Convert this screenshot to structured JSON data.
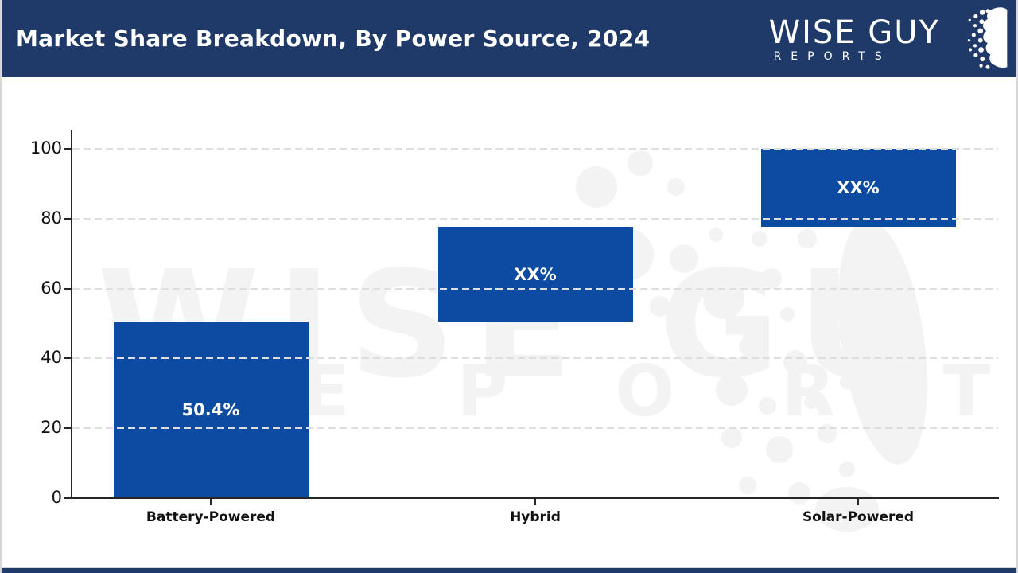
{
  "header": {
    "title": "Market Share Breakdown, By Power Source, 2024",
    "logo": {
      "line1": "WISE GUY",
      "line2": "REPORTS"
    }
  },
  "watermark": {
    "line1": "WISE GU",
    "line2": "R E P O R T S"
  },
  "chart_data": {
    "type": "bar",
    "subtype": "stacked-waterfall-range",
    "title": "Market Share Breakdown, By Power Source, 2024",
    "categories": [
      "Battery-Powered",
      "Hybrid",
      "Solar-Powered"
    ],
    "segments": [
      {
        "category": "Battery-Powered",
        "label": "50.4%",
        "start": 0,
        "end": 50.4
      },
      {
        "category": "Hybrid",
        "label": "XX%",
        "start": 50.6,
        "end": 77.6
      },
      {
        "category": "Solar-Powered",
        "label": "XX%",
        "start": 77.7,
        "end": 100.1
      }
    ],
    "ylim": [
      0,
      105
    ],
    "yticks": [
      0,
      20,
      40,
      60,
      80,
      100
    ],
    "grid": "horizontal-dashed",
    "legend": "none",
    "bar_color": "#0c4ba1"
  },
  "colors": {
    "header_bg": "#1f3a68",
    "footer_bg": "#1f3a68",
    "bar": "#0c4ba1",
    "axis": "#262626",
    "grid": "#dedede",
    "watermark": "#f3f3f3",
    "border": "#d6d6d6"
  }
}
